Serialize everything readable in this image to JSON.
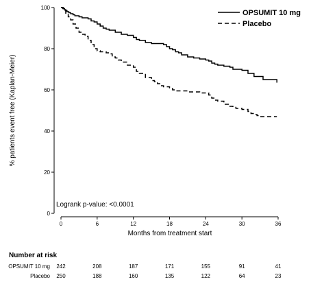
{
  "chart_data": {
    "type": "line",
    "title": "",
    "xlabel": "Months from treatment start",
    "ylabel": "% patients event free (Kaplan-Meier)",
    "xlim": [
      0,
      36
    ],
    "ylim": [
      0,
      100
    ],
    "x_ticks": [
      0,
      6,
      12,
      18,
      24,
      30,
      36
    ],
    "y_ticks": [
      0,
      20,
      40,
      60,
      80,
      100
    ],
    "grid": false,
    "legend_position": "top-right",
    "annotation": "Logrank p-value: <0.0001",
    "series": [
      {
        "name": "OPSUMIT 10 mg",
        "line_style": "solid",
        "color": "#000000",
        "points": [
          [
            0,
            100
          ],
          [
            0.3,
            99.5
          ],
          [
            0.6,
            99
          ],
          [
            0.8,
            98.5
          ],
          [
            1.0,
            98
          ],
          [
            1.3,
            97.5
          ],
          [
            1.6,
            97
          ],
          [
            2.0,
            96.5
          ],
          [
            2.3,
            96
          ],
          [
            3.0,
            95.5
          ],
          [
            3.5,
            95
          ],
          [
            4.5,
            94.5
          ],
          [
            5.0,
            93.5
          ],
          [
            5.5,
            93
          ],
          [
            6.0,
            92
          ],
          [
            6.5,
            91
          ],
          [
            7.0,
            90
          ],
          [
            7.5,
            89.5
          ],
          [
            8.0,
            89
          ],
          [
            9.0,
            88
          ],
          [
            10.0,
            87
          ],
          [
            11.0,
            86.5
          ],
          [
            12.0,
            85.5
          ],
          [
            12.5,
            84.5
          ],
          [
            13.0,
            84
          ],
          [
            14.0,
            83
          ],
          [
            15.0,
            82.5
          ],
          [
            16.5,
            82.5
          ],
          [
            17.0,
            82
          ],
          [
            17.5,
            81
          ],
          [
            18.0,
            80
          ],
          [
            18.5,
            79.5
          ],
          [
            19.0,
            78.5
          ],
          [
            19.5,
            78
          ],
          [
            20.0,
            77
          ],
          [
            21.0,
            76
          ],
          [
            22.0,
            75.5
          ],
          [
            23.0,
            75
          ],
          [
            24.0,
            74.5
          ],
          [
            24.5,
            74
          ],
          [
            25.0,
            73
          ],
          [
            25.5,
            72.5
          ],
          [
            26.0,
            72
          ],
          [
            27.0,
            71.5
          ],
          [
            28.0,
            71
          ],
          [
            28.5,
            70
          ],
          [
            30.0,
            69.5
          ],
          [
            31.0,
            68
          ],
          [
            32.0,
            66.5
          ],
          [
            33.0,
            66.5
          ],
          [
            33.5,
            65
          ],
          [
            35.5,
            65
          ],
          [
            35.8,
            63.5
          ]
        ]
      },
      {
        "name": "Placebo",
        "line_style": "dashed",
        "color": "#000000",
        "points": [
          [
            0,
            100
          ],
          [
            0.4,
            98.5
          ],
          [
            0.8,
            97
          ],
          [
            1.2,
            95.5
          ],
          [
            1.6,
            94
          ],
          [
            2.0,
            92
          ],
          [
            2.5,
            90
          ],
          [
            3.0,
            88
          ],
          [
            3.5,
            87
          ],
          [
            4.0,
            86
          ],
          [
            4.5,
            84
          ],
          [
            5.0,
            82
          ],
          [
            5.5,
            80
          ],
          [
            6.0,
            79
          ],
          [
            6.5,
            78.5
          ],
          [
            7.5,
            78
          ],
          [
            8.0,
            77.5
          ],
          [
            8.5,
            76
          ],
          [
            9.0,
            75.5
          ],
          [
            9.5,
            74.5
          ],
          [
            10.0,
            73.5
          ],
          [
            11.0,
            72
          ],
          [
            12.0,
            71
          ],
          [
            12.5,
            69
          ],
          [
            13.0,
            68
          ],
          [
            14.0,
            66
          ],
          [
            15.0,
            64.5
          ],
          [
            15.5,
            64
          ],
          [
            16.0,
            63
          ],
          [
            16.5,
            62
          ],
          [
            17.0,
            61.5
          ],
          [
            18.0,
            61
          ],
          [
            18.5,
            60
          ],
          [
            19.0,
            59.5
          ],
          [
            20.0,
            59.5
          ],
          [
            21.0,
            59
          ],
          [
            22.0,
            59
          ],
          [
            23.0,
            58.5
          ],
          [
            24.0,
            58.5
          ],
          [
            24.5,
            57.5
          ],
          [
            25.0,
            56
          ],
          [
            25.5,
            55
          ],
          [
            26.0,
            54.5
          ],
          [
            27.0,
            53
          ],
          [
            28.0,
            52
          ],
          [
            28.5,
            51.5
          ],
          [
            29.0,
            51
          ],
          [
            30.0,
            50.5
          ],
          [
            31.0,
            49.5
          ],
          [
            31.5,
            48.5
          ],
          [
            32.0,
            48
          ],
          [
            32.5,
            47.5
          ],
          [
            33.0,
            47
          ],
          [
            35.8,
            47
          ]
        ]
      }
    ],
    "risk_table": {
      "title": "Number at risk",
      "timepoints": [
        0,
        6,
        12,
        18,
        24,
        30,
        36
      ],
      "rows": [
        {
          "label": "OPSUMIT 10 mg",
          "values": [
            242,
            208,
            187,
            171,
            155,
            91,
            41
          ]
        },
        {
          "label": "Placebo",
          "values": [
            250,
            188,
            160,
            135,
            122,
            64,
            23
          ]
        }
      ]
    }
  }
}
